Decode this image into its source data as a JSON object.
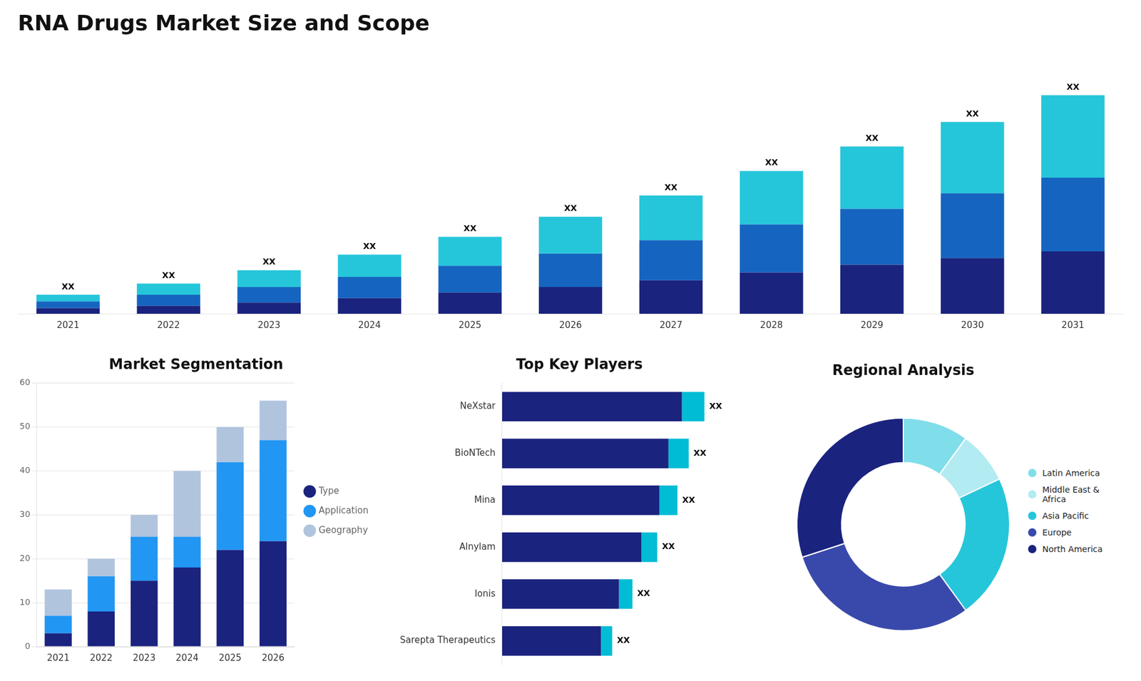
{
  "chart_data": [
    {
      "type": "bar",
      "title": "RNA Drugs Market Size and Scope",
      "categories": [
        "2021",
        "2022",
        "2023",
        "2024",
        "2025",
        "2026",
        "2027",
        "2028",
        "2029",
        "2030",
        "2031"
      ],
      "series": [
        {
          "color": "#1a237e",
          "values": [
            2.5,
            3.5,
            5,
            7,
            9.5,
            12,
            15,
            18.5,
            22,
            25,
            28
          ]
        },
        {
          "color": "#1565c0",
          "values": [
            3,
            5,
            7,
            9.5,
            12,
            15,
            18,
            21.5,
            25,
            29,
            33
          ]
        },
        {
          "color": "#26c6da",
          "values": [
            3,
            5,
            7.5,
            10,
            13,
            16.5,
            20,
            24,
            28,
            32,
            37
          ]
        }
      ],
      "stacked": true,
      "ylim": [
        0,
        119.56
      ],
      "tick_labels": "x",
      "grid": false,
      "annotations": [
        "XX",
        "XX",
        "XX",
        "XX",
        "XX",
        "XX",
        "XX",
        "XX",
        "XX",
        "XX",
        "XX"
      ]
    },
    {
      "type": "bar",
      "title": "Market Segmentation",
      "categories": [
        "2021",
        "2022",
        "2023",
        "2024",
        "2025",
        "2026"
      ],
      "series": [
        {
          "name": "Type",
          "color": "#1a237e",
          "values": [
            3,
            8,
            15,
            18,
            22,
            24
          ]
        },
        {
          "name": "Application",
          "color": "#2196f3",
          "values": [
            4,
            8,
            10,
            7,
            20,
            23
          ]
        },
        {
          "name": "Geography",
          "color": "#b0c4de",
          "values": [
            6,
            4,
            5,
            15,
            8,
            9
          ]
        }
      ],
      "stacked": true,
      "ylim": [
        0,
        60
      ],
      "yticks": [
        0,
        10,
        20,
        30,
        40,
        50,
        60
      ],
      "grid": true,
      "legend": "right"
    },
    {
      "type": "bar",
      "title": "Top Key Players",
      "orientation": "horizontal",
      "categories": [
        "NeXstar",
        "BioNTech",
        "Mina",
        "Alnylam",
        "Ionis",
        "Sarepta Therapeutics"
      ],
      "series": [
        {
          "color": "#1a237e",
          "values": [
            80,
            74,
            70,
            62,
            52,
            44
          ]
        },
        {
          "color": "#00bcd4",
          "values": [
            10,
            9,
            8,
            7,
            6,
            5
          ]
        }
      ],
      "stacked": true,
      "xlim": [
        0,
        115
      ],
      "tick_labels": "y",
      "grid": false,
      "annotations": [
        "XX",
        "XX",
        "XX",
        "XX",
        "XX",
        "XX"
      ]
    },
    {
      "type": "doughnut",
      "title": "Regional Analysis",
      "categories": [
        "Latin America",
        "Middle East &\nAfrica",
        "Asia Pacific",
        "Europe",
        "North America"
      ],
      "values": [
        10,
        8,
        22,
        30,
        30
      ],
      "colors": [
        "#80deea",
        "#b2ebf2",
        "#26c6da",
        "#3949ab",
        "#1a237e"
      ],
      "legend": "right"
    }
  ]
}
